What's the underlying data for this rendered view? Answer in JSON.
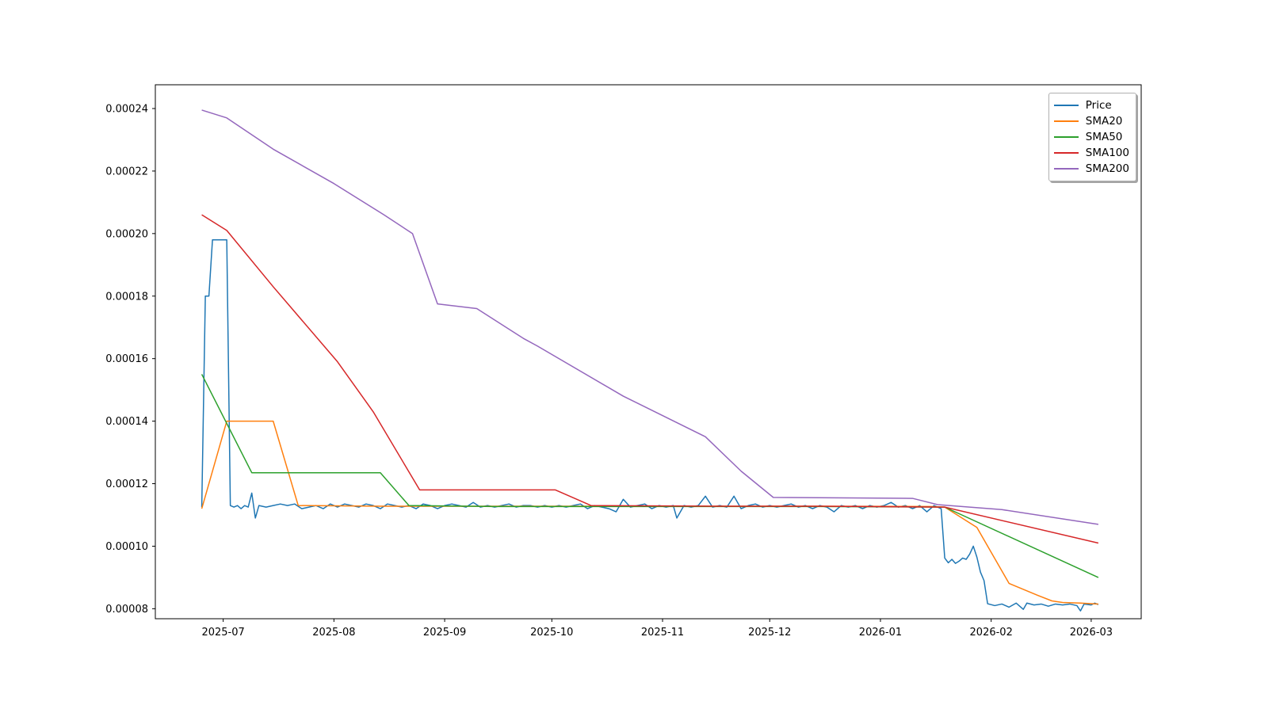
{
  "figure": {
    "background_color": "#ffffff",
    "axes_border_color": "#000000",
    "tick_label_color": "#000000"
  },
  "chart_data": {
    "type": "line",
    "title": "",
    "xlabel": "",
    "ylabel": "",
    "grid": false,
    "legend": {
      "position": "upper right",
      "entries": [
        "Price",
        "SMA20",
        "SMA50",
        "SMA100",
        "SMA200"
      ]
    },
    "xlim": [
      "2025-06-12",
      "2026-03-15"
    ],
    "ylim": [
      7.68e-05,
      0.0002476
    ],
    "x_axis": {
      "ticks": [
        {
          "value": "2025-07-01",
          "label": "2025-07"
        },
        {
          "value": "2025-08-01",
          "label": "2025-08"
        },
        {
          "value": "2025-09-01",
          "label": "2025-09"
        },
        {
          "value": "2025-10-01",
          "label": "2025-10"
        },
        {
          "value": "2025-11-01",
          "label": "2025-11"
        },
        {
          "value": "2025-12-01",
          "label": "2025-12"
        },
        {
          "value": "2026-01-01",
          "label": "2026-01"
        },
        {
          "value": "2026-02-01",
          "label": "2026-02"
        },
        {
          "value": "2026-03-01",
          "label": "2026-03"
        }
      ]
    },
    "y_axis": {
      "ticks": [
        {
          "value": 8e-05,
          "label": "0.00008"
        },
        {
          "value": 0.0001,
          "label": "0.00010"
        },
        {
          "value": 0.00012,
          "label": "0.00012"
        },
        {
          "value": 0.00014,
          "label": "0.00014"
        },
        {
          "value": 0.00016,
          "label": "0.00016"
        },
        {
          "value": 0.00018,
          "label": "0.00018"
        },
        {
          "value": 0.0002,
          "label": "0.00020"
        },
        {
          "value": 0.00022,
          "label": "0.00022"
        },
        {
          "value": 0.00024,
          "label": "0.00024"
        }
      ]
    },
    "series": [
      {
        "name": "Price",
        "color": "#1f77b4",
        "line_width": 1.5,
        "points": [
          [
            "2025-06-25",
            0.0001125
          ],
          [
            "2025-06-26",
            0.00018
          ],
          [
            "2025-06-27",
            0.00018
          ],
          [
            "2025-06-28",
            0.000198
          ],
          [
            "2025-07-02",
            0.000198
          ],
          [
            "2025-07-03",
            0.000113
          ],
          [
            "2025-07-04",
            0.0001125
          ],
          [
            "2025-07-05",
            0.000113
          ],
          [
            "2025-07-06",
            0.000112
          ],
          [
            "2025-07-07",
            0.000113
          ],
          [
            "2025-07-08",
            0.0001125
          ],
          [
            "2025-07-09",
            0.000117
          ],
          [
            "2025-07-10",
            0.000109
          ],
          [
            "2025-07-11",
            0.000113
          ],
          [
            "2025-07-13",
            0.0001125
          ],
          [
            "2025-07-15",
            0.000113
          ],
          [
            "2025-07-17",
            0.0001135
          ],
          [
            "2025-07-19",
            0.000113
          ],
          [
            "2025-07-21",
            0.0001135
          ],
          [
            "2025-07-23",
            0.000112
          ],
          [
            "2025-07-25",
            0.0001125
          ],
          [
            "2025-07-27",
            0.000113
          ],
          [
            "2025-07-29",
            0.000112
          ],
          [
            "2025-07-31",
            0.0001135
          ],
          [
            "2025-08-02",
            0.0001125
          ],
          [
            "2025-08-04",
            0.0001135
          ],
          [
            "2025-08-06",
            0.000113
          ],
          [
            "2025-08-08",
            0.0001125
          ],
          [
            "2025-08-10",
            0.0001135
          ],
          [
            "2025-08-12",
            0.000113
          ],
          [
            "2025-08-14",
            0.000112
          ],
          [
            "2025-08-16",
            0.0001135
          ],
          [
            "2025-08-18",
            0.000113
          ],
          [
            "2025-08-20",
            0.0001125
          ],
          [
            "2025-08-22",
            0.000113
          ],
          [
            "2025-08-24",
            0.000112
          ],
          [
            "2025-08-26",
            0.0001135
          ],
          [
            "2025-08-28",
            0.000113
          ],
          [
            "2025-08-30",
            0.000112
          ],
          [
            "2025-09-01",
            0.000113
          ],
          [
            "2025-09-03",
            0.0001135
          ],
          [
            "2025-09-05",
            0.000113
          ],
          [
            "2025-09-07",
            0.0001125
          ],
          [
            "2025-09-09",
            0.000114
          ],
          [
            "2025-09-11",
            0.0001125
          ],
          [
            "2025-09-13",
            0.000113
          ],
          [
            "2025-09-15",
            0.0001125
          ],
          [
            "2025-09-17",
            0.000113
          ],
          [
            "2025-09-19",
            0.0001135
          ],
          [
            "2025-09-21",
            0.0001125
          ],
          [
            "2025-09-23",
            0.000113
          ],
          [
            "2025-09-25",
            0.000113
          ],
          [
            "2025-09-27",
            0.0001125
          ],
          [
            "2025-09-29",
            0.000113
          ],
          [
            "2025-10-01",
            0.0001125
          ],
          [
            "2025-10-03",
            0.000113
          ],
          [
            "2025-10-05",
            0.0001125
          ],
          [
            "2025-10-07",
            0.000113
          ],
          [
            "2025-10-09",
            0.0001135
          ],
          [
            "2025-10-11",
            0.000112
          ],
          [
            "2025-10-13",
            0.000113
          ],
          [
            "2025-10-15",
            0.0001125
          ],
          [
            "2025-10-17",
            0.000112
          ],
          [
            "2025-10-19",
            0.000111
          ],
          [
            "2025-10-21",
            0.000115
          ],
          [
            "2025-10-23",
            0.0001125
          ],
          [
            "2025-10-25",
            0.000113
          ],
          [
            "2025-10-27",
            0.0001135
          ],
          [
            "2025-10-29",
            0.000112
          ],
          [
            "2025-10-31",
            0.000113
          ],
          [
            "2025-11-02",
            0.0001125
          ],
          [
            "2025-11-04",
            0.000113
          ],
          [
            "2025-11-05",
            0.000109
          ],
          [
            "2025-11-07",
            0.000113
          ],
          [
            "2025-11-09",
            0.0001125
          ],
          [
            "2025-11-11",
            0.000113
          ],
          [
            "2025-11-13",
            0.000116
          ],
          [
            "2025-11-15",
            0.0001125
          ],
          [
            "2025-11-17",
            0.000113
          ],
          [
            "2025-11-19",
            0.0001125
          ],
          [
            "2025-11-21",
            0.000116
          ],
          [
            "2025-11-23",
            0.000112
          ],
          [
            "2025-11-25",
            0.000113
          ],
          [
            "2025-11-27",
            0.0001135
          ],
          [
            "2025-11-29",
            0.0001125
          ],
          [
            "2025-12-01",
            0.000113
          ],
          [
            "2025-12-03",
            0.0001125
          ],
          [
            "2025-12-05",
            0.000113
          ],
          [
            "2025-12-07",
            0.0001135
          ],
          [
            "2025-12-09",
            0.0001125
          ],
          [
            "2025-12-11",
            0.000113
          ],
          [
            "2025-12-13",
            0.000112
          ],
          [
            "2025-12-15",
            0.000113
          ],
          [
            "2025-12-17",
            0.0001125
          ],
          [
            "2025-12-19",
            0.000111
          ],
          [
            "2025-12-21",
            0.000113
          ],
          [
            "2025-12-23",
            0.0001125
          ],
          [
            "2025-12-25",
            0.000113
          ],
          [
            "2025-12-27",
            0.000112
          ],
          [
            "2025-12-29",
            0.000113
          ],
          [
            "2025-12-31",
            0.0001125
          ],
          [
            "2026-01-02",
            0.000113
          ],
          [
            "2026-01-04",
            0.000114
          ],
          [
            "2026-01-06",
            0.0001125
          ],
          [
            "2026-01-08",
            0.000113
          ],
          [
            "2026-01-10",
            0.000112
          ],
          [
            "2026-01-12",
            0.000113
          ],
          [
            "2026-01-14",
            0.000111
          ],
          [
            "2026-01-16",
            0.000113
          ],
          [
            "2026-01-18",
            0.000112
          ],
          [
            "2026-01-19",
            9.62e-05
          ],
          [
            "2026-01-20",
            9.47e-05
          ],
          [
            "2026-01-21",
            9.58e-05
          ],
          [
            "2026-01-22",
            9.45e-05
          ],
          [
            "2026-01-23",
            9.52e-05
          ],
          [
            "2026-01-24",
            9.62e-05
          ],
          [
            "2026-01-25",
            9.58e-05
          ],
          [
            "2026-01-26",
            9.75e-05
          ],
          [
            "2026-01-27",
            0.0001
          ],
          [
            "2026-01-28",
            9.65e-05
          ],
          [
            "2026-01-29",
            9.17e-05
          ],
          [
            "2026-01-30",
            8.9e-05
          ],
          [
            "2026-01-31",
            8.16e-05
          ],
          [
            "2026-02-02",
            8.1e-05
          ],
          [
            "2026-02-04",
            8.15e-05
          ],
          [
            "2026-02-06",
            8.05e-05
          ],
          [
            "2026-02-08",
            8.18e-05
          ],
          [
            "2026-02-10",
            7.98e-05
          ],
          [
            "2026-02-11",
            8.18e-05
          ],
          [
            "2026-02-13",
            8.12e-05
          ],
          [
            "2026-02-15",
            8.15e-05
          ],
          [
            "2026-02-17",
            8.08e-05
          ],
          [
            "2026-02-19",
            8.15e-05
          ],
          [
            "2026-02-21",
            8.12e-05
          ],
          [
            "2026-02-23",
            8.15e-05
          ],
          [
            "2026-02-25",
            8.1e-05
          ],
          [
            "2026-02-26",
            7.93e-05
          ],
          [
            "2026-02-27",
            8.15e-05
          ],
          [
            "2026-03-01",
            8.12e-05
          ],
          [
            "2026-03-02",
            8.18e-05
          ],
          [
            "2026-03-03",
            8.13e-05
          ]
        ]
      },
      {
        "name": "SMA20",
        "color": "#ff7f0e",
        "line_width": 1.5,
        "points": [
          [
            "2025-06-25",
            0.000112
          ],
          [
            "2025-07-02",
            0.00014
          ],
          [
            "2025-07-15",
            0.00014
          ],
          [
            "2025-07-22",
            0.000113
          ],
          [
            "2025-08-15",
            0.0001128
          ],
          [
            "2025-09-15",
            0.0001128
          ],
          [
            "2025-10-15",
            0.0001128
          ],
          [
            "2025-11-15",
            0.0001128
          ],
          [
            "2025-12-15",
            0.0001128
          ],
          [
            "2026-01-15",
            0.0001127
          ],
          [
            "2026-01-19",
            0.0001125
          ],
          [
            "2026-01-28",
            0.000106
          ],
          [
            "2026-02-06",
            8.81e-05
          ],
          [
            "2026-02-14",
            8.43e-05
          ],
          [
            "2026-02-18",
            8.25e-05
          ],
          [
            "2026-02-21",
            8.2e-05
          ],
          [
            "2026-02-26",
            8.18e-05
          ],
          [
            "2026-03-03",
            8.15e-05
          ]
        ]
      },
      {
        "name": "SMA50",
        "color": "#2ca02c",
        "line_width": 1.5,
        "points": [
          [
            "2025-06-25",
            0.000155
          ],
          [
            "2025-07-09",
            0.0001235
          ],
          [
            "2025-08-14",
            0.0001235
          ],
          [
            "2025-08-22",
            0.000113
          ],
          [
            "2025-09-15",
            0.0001127
          ],
          [
            "2025-10-15",
            0.0001127
          ],
          [
            "2025-11-15",
            0.0001127
          ],
          [
            "2025-12-15",
            0.0001127
          ],
          [
            "2026-01-19",
            0.0001125
          ],
          [
            "2026-03-03",
            9e-05
          ]
        ]
      },
      {
        "name": "SMA100",
        "color": "#d62728",
        "line_width": 1.5,
        "points": [
          [
            "2025-06-25",
            0.000206
          ],
          [
            "2025-07-02",
            0.000201
          ],
          [
            "2025-07-15",
            0.000183
          ],
          [
            "2025-08-02",
            0.000159
          ],
          [
            "2025-08-12",
            0.000143
          ],
          [
            "2025-08-25",
            0.000118
          ],
          [
            "2025-10-02",
            0.000118
          ],
          [
            "2025-10-12",
            0.000113
          ],
          [
            "2025-11-15",
            0.0001128
          ],
          [
            "2025-12-15",
            0.0001128
          ],
          [
            "2026-01-19",
            0.0001125
          ],
          [
            "2026-03-03",
            0.000101
          ]
        ]
      },
      {
        "name": "SMA200",
        "color": "#9467bd",
        "line_width": 1.5,
        "points": [
          [
            "2025-06-25",
            0.0002395
          ],
          [
            "2025-07-02",
            0.000237
          ],
          [
            "2025-07-15",
            0.000227
          ],
          [
            "2025-08-01",
            0.000216
          ],
          [
            "2025-08-15",
            0.000206
          ],
          [
            "2025-08-23",
            0.0002
          ],
          [
            "2025-08-30",
            0.0001775
          ],
          [
            "2025-09-10",
            0.000176
          ],
          [
            "2025-09-23",
            0.0001665
          ],
          [
            "2025-09-27",
            0.000164
          ],
          [
            "2025-10-21",
            0.000148
          ],
          [
            "2025-11-13",
            0.000135
          ],
          [
            "2025-11-23",
            0.000124
          ],
          [
            "2025-12-02",
            0.0001156
          ],
          [
            "2026-01-10",
            0.0001153
          ],
          [
            "2026-01-17",
            0.0001133
          ],
          [
            "2026-02-04",
            0.0001117
          ],
          [
            "2026-03-03",
            0.000107
          ]
        ]
      }
    ]
  }
}
